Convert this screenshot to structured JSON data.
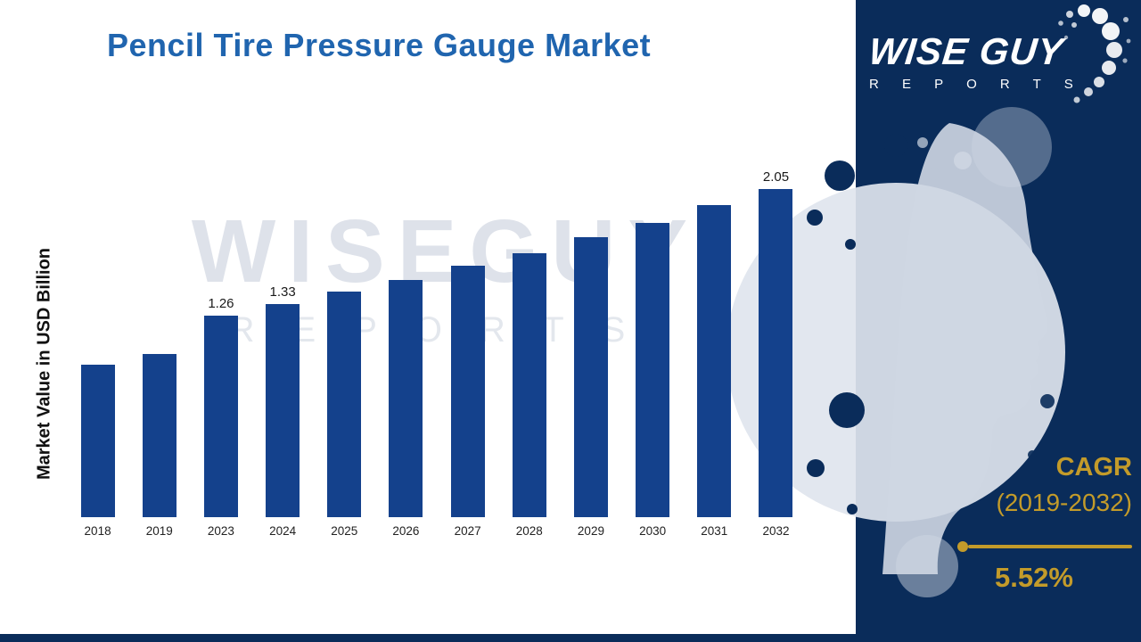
{
  "title": "Pencil Tire Pressure Gauge Market",
  "y_axis_label": "Market Value in USD Billion",
  "watermark": {
    "line1": "WISEGUY",
    "line2": "REPORTS"
  },
  "logo": {
    "name": "WISE GUY",
    "reports": "R E P O R T S"
  },
  "cagr": {
    "label": "CAGR",
    "range": "(2019-2032)",
    "value": "5.52%"
  },
  "colors": {
    "bar": "#14418c",
    "title": "#2065af",
    "panel": "#0a2c5a",
    "accent_gold": "#c39b2a",
    "watermark": "#a8b4c7"
  },
  "chart_data": {
    "type": "bar",
    "title": "Pencil Tire Pressure Gauge Market",
    "xlabel": "",
    "ylabel": "Market Value in USD Billion",
    "unit": "USD Billion",
    "categories": [
      "2018",
      "2019",
      "2023",
      "2024",
      "2025",
      "2026",
      "2027",
      "2028",
      "2029",
      "2030",
      "2031",
      "2032"
    ],
    "values": [
      0.95,
      1.02,
      1.26,
      1.33,
      1.41,
      1.48,
      1.57,
      1.65,
      1.75,
      1.84,
      1.95,
      2.05
    ],
    "bar_labels": [
      "",
      "",
      "1.26",
      "1.33",
      "",
      "",
      "",
      "",
      "",
      "",
      "",
      "2.05"
    ],
    "ylim": [
      0,
      2.2
    ],
    "grid": false,
    "legend": false
  }
}
